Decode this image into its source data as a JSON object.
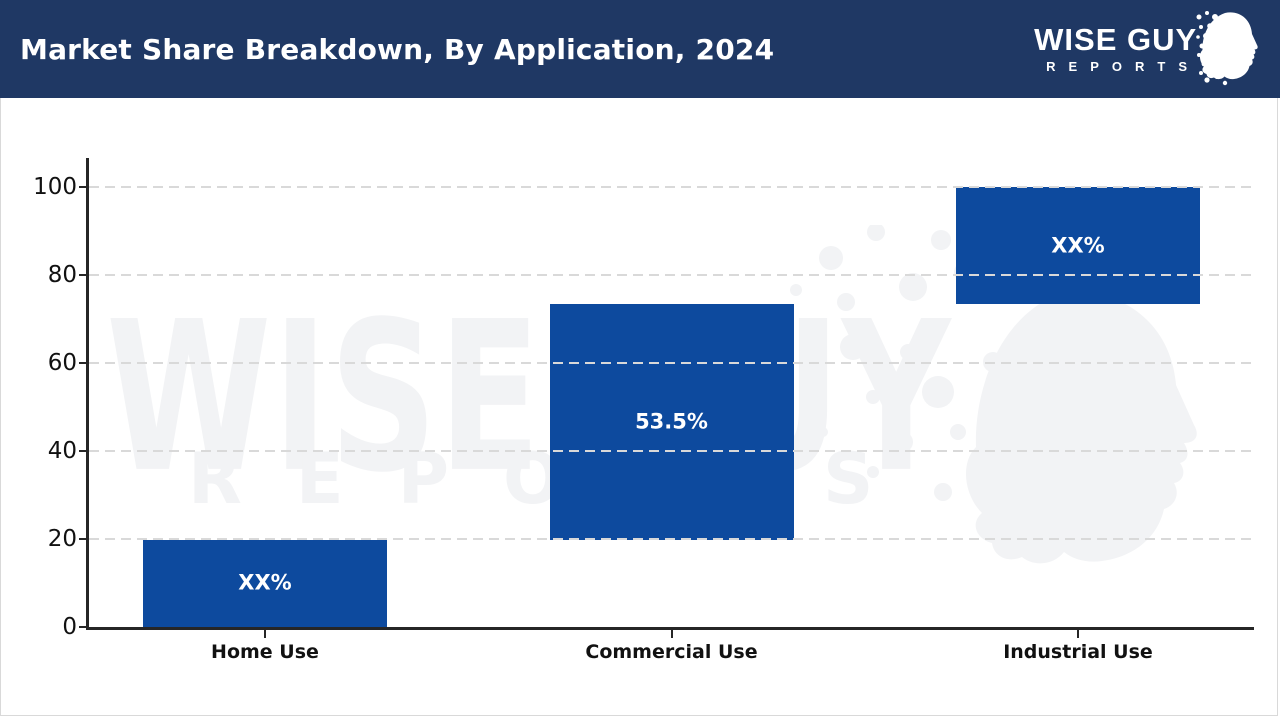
{
  "header": {
    "title": "Market Share Breakdown, By Application, 2024",
    "logo_line1": "WISE GUY",
    "logo_line2": "REPORTS"
  },
  "watermark": {
    "line1": "WISE GUY",
    "line2": "REPORTS"
  },
  "chart_data": {
    "type": "bar",
    "variant": "floating-segment (waterfall-style) bars, cumulative to 100%",
    "title": "Market Share Breakdown, By Application, 2024",
    "categories": [
      "Home Use",
      "Commercial Use",
      "Industrial Use"
    ],
    "bars": [
      {
        "category": "Home Use",
        "base": 0,
        "top": 19.8,
        "label": "XX%"
      },
      {
        "category": "Commercial Use",
        "base": 19.8,
        "top": 73.3,
        "label": "53.5%",
        "value": 53.5
      },
      {
        "category": "Industrial Use",
        "base": 73.3,
        "top": 100,
        "label": "XX%"
      }
    ],
    "y_ticks": [
      0,
      20,
      40,
      60,
      80,
      100
    ],
    "ylim": [
      0,
      104
    ],
    "xlabel": "",
    "ylabel": "",
    "grid": "horizontal-dashed",
    "legend": "none",
    "bar_color": "#0d4a9e",
    "bar_label_color": "#ffffff"
  },
  "colors": {
    "header_bg": "#1f3864",
    "header_text": "#ffffff",
    "bar_blue": "#0d4a9e",
    "axis": "#262626",
    "grid": "#d9d9d9",
    "watermark": "#f2f3f5",
    "frame_border": "#d9d9d9",
    "tick_text": "#111111"
  }
}
